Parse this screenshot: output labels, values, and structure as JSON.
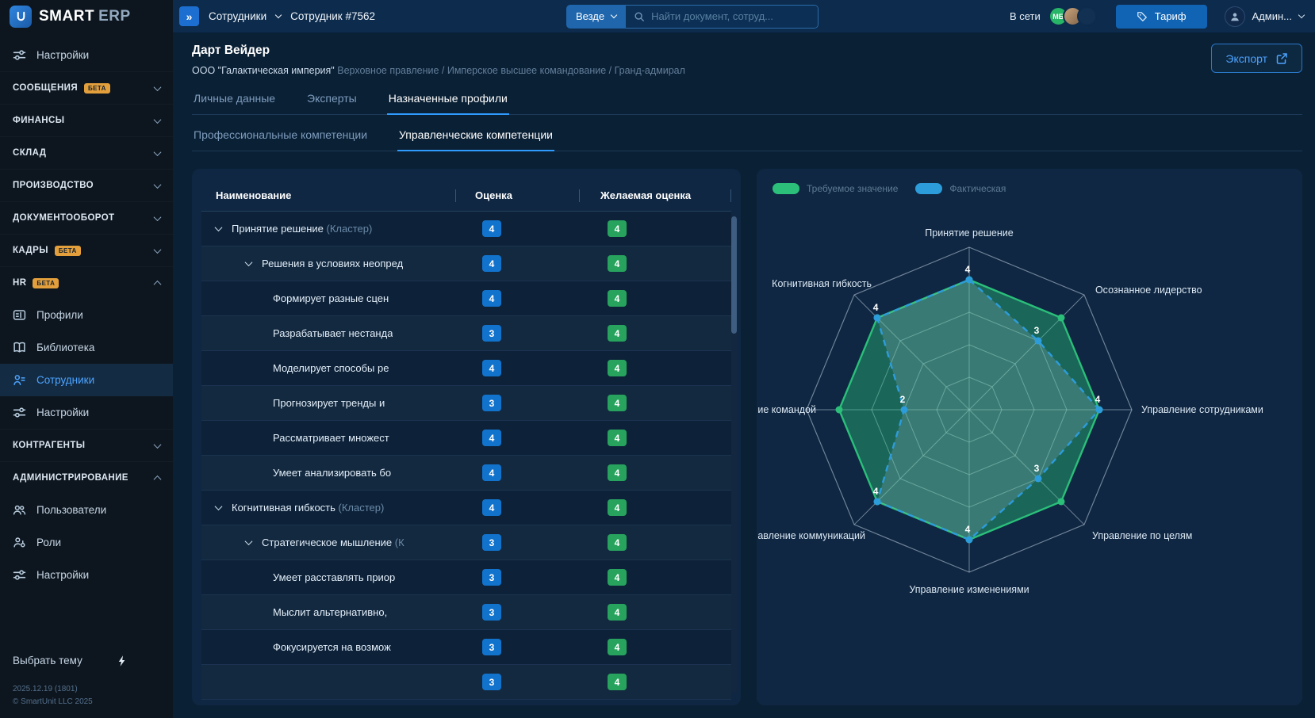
{
  "brand": {
    "name_primary": "SMART",
    "name_secondary": "ERP"
  },
  "topbar": {
    "collapse_icon": "»",
    "breadcrumbs": [
      "Сотрудники",
      "Сотрудник #7562"
    ],
    "search": {
      "scope": "Везде",
      "placeholder": "Найти документ, сотруд..."
    },
    "online_label": "В сети",
    "avatar_initials": "МБ",
    "tariff_label": "Тариф",
    "admin_label": "Админ..."
  },
  "sidebar": {
    "beta_label": "БЕТА",
    "items": [
      {
        "type": "item",
        "key": "settings-top",
        "label": "Настройки",
        "icon": "sliders-icon"
      },
      {
        "type": "section",
        "key": "messages",
        "label": "СООБЩЕНИЯ",
        "beta": true,
        "expanded": false
      },
      {
        "type": "section",
        "key": "finance",
        "label": "ФИНАНСЫ",
        "expanded": false
      },
      {
        "type": "section",
        "key": "warehouse",
        "label": "СКЛАД",
        "expanded": false
      },
      {
        "type": "section",
        "key": "production",
        "label": "ПРОИЗВОДСТВО",
        "expanded": false
      },
      {
        "type": "section",
        "key": "docflow",
        "label": "ДОКУМЕНТООБОРОТ",
        "expanded": false
      },
      {
        "type": "section",
        "key": "kadry",
        "label": "КАДРЫ",
        "beta": true,
        "expanded": false
      },
      {
        "type": "section",
        "key": "hr",
        "label": "HR",
        "beta": true,
        "expanded": true
      },
      {
        "type": "item",
        "key": "profiles",
        "label": "Профили",
        "icon": "profiles-icon"
      },
      {
        "type": "item",
        "key": "library",
        "label": "Библиотека",
        "icon": "library-icon"
      },
      {
        "type": "item",
        "key": "employees",
        "label": "Сотрудники",
        "icon": "employees-icon",
        "active": true
      },
      {
        "type": "item",
        "key": "hr-settings",
        "label": "Настройки",
        "icon": "sliders-icon"
      },
      {
        "type": "section",
        "key": "contractors",
        "label": "КОНТРАГЕНТЫ",
        "expanded": false
      },
      {
        "type": "section",
        "key": "administration",
        "label": "АДМИНИСТРИРОВАНИЕ",
        "expanded": true
      },
      {
        "type": "item",
        "key": "users",
        "label": "Пользователи",
        "icon": "users-icon"
      },
      {
        "type": "item",
        "key": "roles",
        "label": "Роли",
        "icon": "roles-icon"
      },
      {
        "type": "item",
        "key": "admin-settings",
        "label": "Настройки",
        "icon": "sliders-icon"
      }
    ],
    "theme": {
      "label": "Выбрать тему"
    },
    "footer_lines": [
      "2025.12.19 (1801)",
      "© SmartUnit LLC 2025"
    ]
  },
  "page": {
    "title": "Дарт Вейдер",
    "company": "ООО \"Галактическая империя\"",
    "org_path": "Верховное правление / Имперское высшее командование / Гранд-адмирал",
    "export_label": "Экспорт",
    "tabs": [
      {
        "key": "personal",
        "label": "Личные данные",
        "active": false
      },
      {
        "key": "experts",
        "label": "Эксперты",
        "active": false
      },
      {
        "key": "profiles",
        "label": "Назначенные профили",
        "active": true
      }
    ],
    "subtabs": [
      {
        "key": "professional",
        "label": "Профессиональные компетенции",
        "active": false
      },
      {
        "key": "managerial",
        "label": "Управленческие компетенции",
        "active": true
      }
    ]
  },
  "table": {
    "columns": [
      "Наименование",
      "Оценка",
      "Желаемая оценка"
    ],
    "rows": [
      {
        "name": "Принятие решение",
        "suffix": "(Кластер)",
        "level": 0,
        "expandable": true,
        "score": 4,
        "desired": 4
      },
      {
        "name": "Решения в условиях неопред",
        "level": 1,
        "expandable": true,
        "score": 4,
        "desired": 4
      },
      {
        "name": "Формирует разные сцен",
        "level": 2,
        "expandable": false,
        "score": 4,
        "desired": 4
      },
      {
        "name": "Разрабатывает нестанда",
        "level": 2,
        "expandable": false,
        "score": 3,
        "desired": 4
      },
      {
        "name": "Моделирует способы ре",
        "level": 2,
        "expandable": false,
        "score": 4,
        "desired": 4
      },
      {
        "name": "Прогнозирует тренды и",
        "level": 2,
        "expandable": false,
        "score": 3,
        "desired": 4
      },
      {
        "name": "Рассматривает множест",
        "level": 2,
        "expandable": false,
        "score": 4,
        "desired": 4
      },
      {
        "name": "Умеет анализировать бо",
        "level": 2,
        "expandable": false,
        "score": 4,
        "desired": 4
      },
      {
        "name": "Когнитивная гибкость",
        "suffix": "(Кластер)",
        "level": 0,
        "expandable": true,
        "score": 4,
        "desired": 4
      },
      {
        "name": "Стратегическое мышление",
        "suffix": "(К",
        "level": 1,
        "expandable": true,
        "score": 3,
        "desired": 4
      },
      {
        "name": "Умеет расставлять приор",
        "level": 2,
        "expandable": false,
        "score": 3,
        "desired": 4
      },
      {
        "name": "Мыслит альтернативно,",
        "level": 2,
        "expandable": false,
        "score": 3,
        "desired": 4
      },
      {
        "name": "Фокусируется на возмож",
        "level": 2,
        "expandable": false,
        "score": 3,
        "desired": 4
      },
      {
        "name": "",
        "level": 2,
        "expandable": false,
        "score": 3,
        "desired": 4
      }
    ]
  },
  "chart_data": {
    "type": "radar",
    "rings": 5,
    "max": 5,
    "grid": true,
    "legend_position": "top-left",
    "axes": [
      "Принятие решение",
      "Осознанное лидерство",
      "Управление сотрудниками",
      "Управление по целям",
      "Управление изменениями",
      "авление коммуникаций",
      "ие командой",
      "Когнитивная гибкость"
    ],
    "series": [
      {
        "name": "Требуемое значение",
        "color": "#2bbf7a",
        "fill": "rgba(43,191,122,0.42)",
        "style": "solid",
        "values": [
          4,
          4,
          4,
          4,
          4,
          4,
          4,
          4
        ],
        "show_labels": false
      },
      {
        "name": "Фактическая",
        "color": "#2d9cdb",
        "fill": "rgba(185,205,225,0.20)",
        "style": "dashed",
        "values": [
          4,
          3,
          4,
          3,
          4,
          4,
          2,
          4
        ],
        "show_labels": true
      }
    ]
  }
}
